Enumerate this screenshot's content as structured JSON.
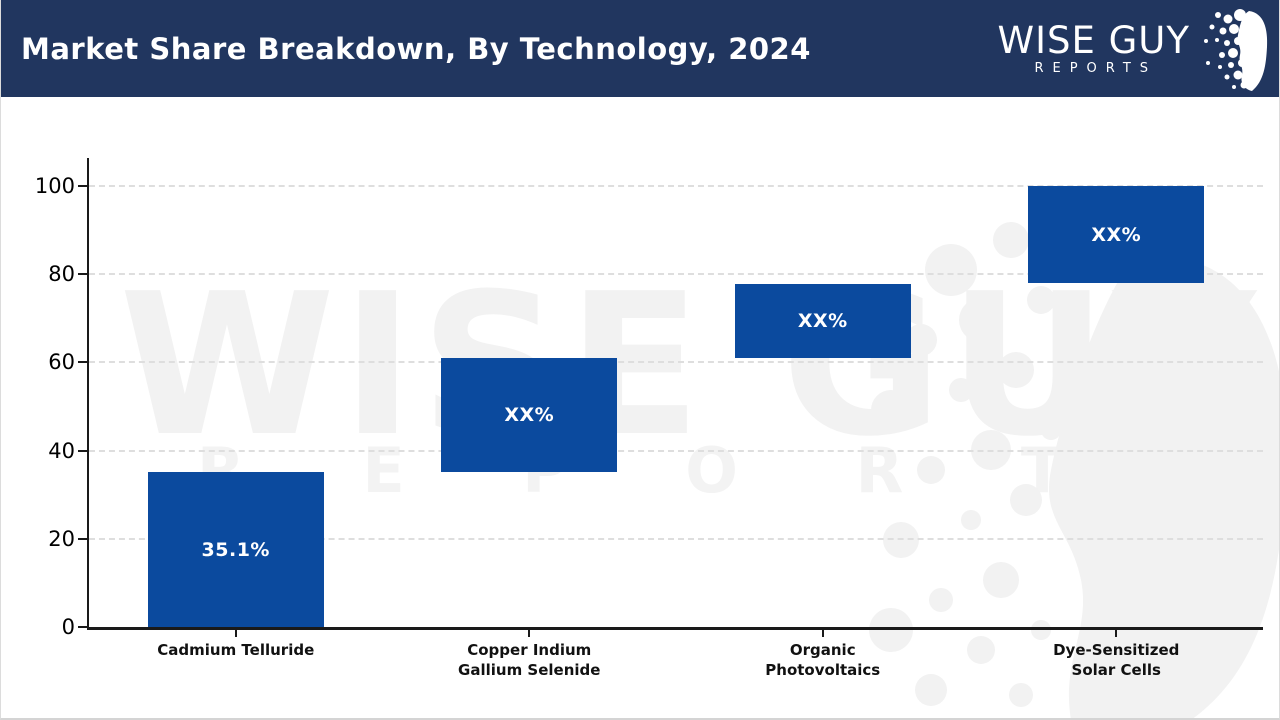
{
  "header": {
    "title": "Market Share Breakdown, By Technology, 2024",
    "logo": {
      "line1": "WISE GUY",
      "line2": "REPORTS"
    }
  },
  "watermark": {
    "line1": "WISE GUY",
    "line2": "R E P O R T S"
  },
  "colors": {
    "header_bg": "#21365f",
    "bar": "#0b4a9e",
    "axis": "#1a1a1a",
    "grid": "#dedede",
    "watermark": "#f2f2f2"
  },
  "chart_data": {
    "type": "bar",
    "subtype": "waterfall",
    "title": "Market Share Breakdown, By Technology, 2024",
    "categories": [
      "Cadmium Telluride",
      "Copper Indium\nGallium Selenide",
      "Organic\nPhotovoltaics",
      "Dye-Sensitized\nSolar Cells"
    ],
    "bars": [
      {
        "category": "Cadmium Telluride",
        "start": 0,
        "end": 35.1,
        "label": "35.1%"
      },
      {
        "category": "Copper Indium Gallium Selenide",
        "start": 35.1,
        "end": 61,
        "label": "XX%"
      },
      {
        "category": "Organic Photovoltaics",
        "start": 61,
        "end": 77.8,
        "label": "XX%"
      },
      {
        "category": "Dye-Sensitized Solar Cells",
        "start": 78,
        "end": 100,
        "label": "XX%"
      }
    ],
    "ylim": [
      0,
      100
    ],
    "yticks": [
      0,
      20,
      40,
      60,
      80,
      100
    ],
    "grid": "horizontal-dashed",
    "legend": "none",
    "bar_color": "#0b4a9e"
  }
}
